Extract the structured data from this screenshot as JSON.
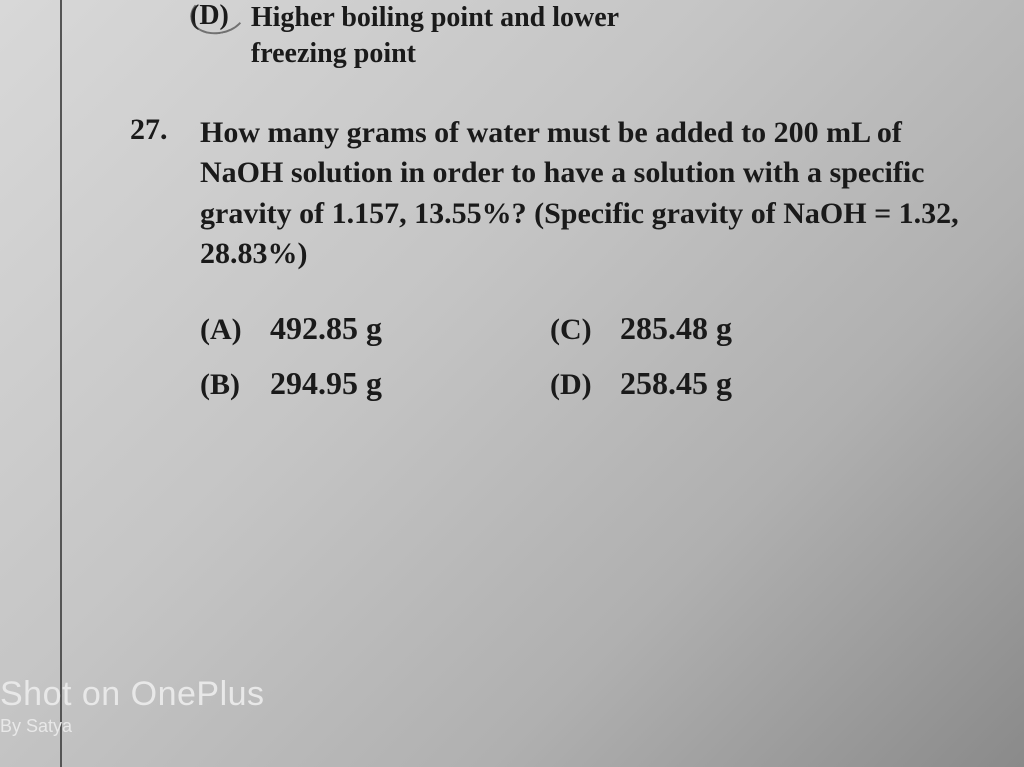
{
  "prev_option": {
    "label": "(D)",
    "text_line1": "Higher boiling point and lower",
    "text_line2": "freezing point"
  },
  "question": {
    "number": "27.",
    "text": "How many grams of water must be added to 200 mL of NaOH solution in order to have a solution with a specific gravity of 1.157, 13.55%? (Specific gravity of NaOH = 1.32, 28.83%)"
  },
  "answers": {
    "a": {
      "label": "(A)",
      "value": "492.85 g"
    },
    "b": {
      "label": "(B)",
      "value": "294.95 g"
    },
    "c": {
      "label": "(C)",
      "value": "285.48 g"
    },
    "d": {
      "label": "(D)",
      "value": "258.45 g"
    }
  },
  "watermark": {
    "main": "Shot on OnePlus",
    "sub": "By Satya"
  },
  "colors": {
    "text": "#1a1a1a",
    "bg_light": "#d8d8d8",
    "bg_dark": "#8a8a8a",
    "watermark": "#e8e8e8"
  }
}
